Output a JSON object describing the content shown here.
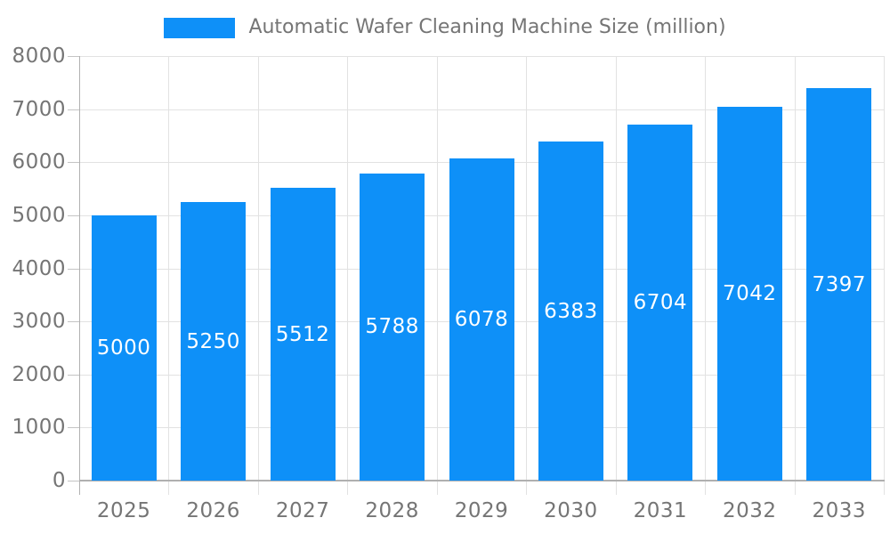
{
  "legend": {
    "label": "Automatic Wafer Cleaning Machine Size (million)"
  },
  "colors": {
    "bar": "#0e90f8",
    "bar_label": "#ffffff",
    "axis_label": "#757575",
    "legend_label": "#757575",
    "grid_line": "#e2e2e2",
    "axis_line": "#b0b0b0",
    "tick_line": "#c4c4c4",
    "background": "#ffffff"
  },
  "chart_data": {
    "type": "bar",
    "title": "",
    "xlabel": "",
    "ylabel": "",
    "categories": [
      "2025",
      "2026",
      "2027",
      "2028",
      "2029",
      "2030",
      "2031",
      "2032",
      "2033"
    ],
    "series": [
      {
        "name": "Automatic Wafer Cleaning Machine Size (million)",
        "values": [
          5000,
          5250,
          5512,
          5788,
          6078,
          6383,
          6704,
          7042,
          7397
        ]
      }
    ],
    "yticks": [
      0,
      1000,
      2000,
      3000,
      4000,
      5000,
      6000,
      7000,
      8000
    ],
    "ylim": [
      0,
      8000
    ],
    "grid": true,
    "legend_position": "top",
    "value_labels": "inside-center"
  }
}
